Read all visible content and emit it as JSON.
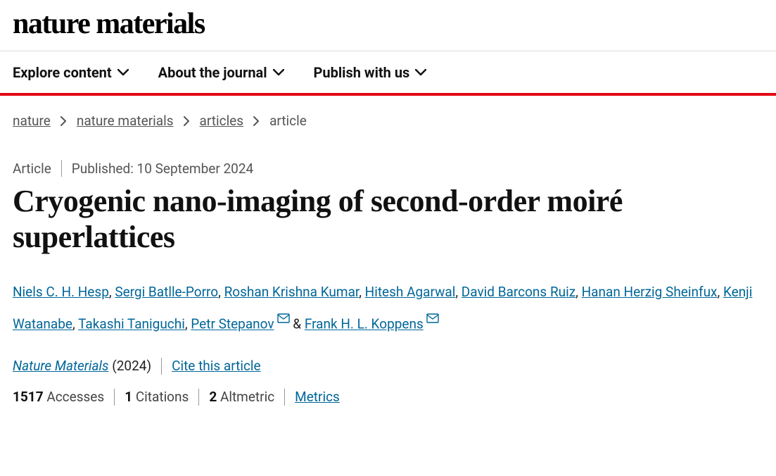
{
  "brand": "nature materials",
  "nav": {
    "items": [
      {
        "label": "Explore content"
      },
      {
        "label": "About the journal"
      },
      {
        "label": "Publish with us"
      }
    ]
  },
  "breadcrumb": {
    "items": [
      {
        "label": "nature",
        "link": true
      },
      {
        "label": "nature materials",
        "link": true
      },
      {
        "label": "articles",
        "link": true
      },
      {
        "label": "article",
        "link": false
      }
    ]
  },
  "meta": {
    "type": "Article",
    "published_label": "Published:",
    "published_date": "10 September 2024"
  },
  "title": "Cryogenic nano-imaging of second-order moiré superlattices",
  "authors": [
    {
      "name": "Niels C. H. Hesp",
      "mail": false
    },
    {
      "name": "Sergi Batlle-Porro",
      "mail": false
    },
    {
      "name": "Roshan Krishna Kumar",
      "mail": false
    },
    {
      "name": "Hitesh Agarwal",
      "mail": false
    },
    {
      "name": "David Barcons Ruiz",
      "mail": false
    },
    {
      "name": "Hanan Herzig Sheinfux",
      "mail": false
    },
    {
      "name": "Kenji Watanabe",
      "mail": false
    },
    {
      "name": "Takashi Taniguchi",
      "mail": false
    },
    {
      "name": "Petr Stepanov",
      "mail": true
    },
    {
      "name": "Frank H. L. Koppens",
      "mail": true
    }
  ],
  "journal": {
    "name": "Nature Materials",
    "year": "(2024)",
    "cite_label": "Cite this article"
  },
  "stats": {
    "accesses": {
      "value": "1517",
      "label": "Accesses"
    },
    "citations": {
      "value": "1",
      "label": "Citations"
    },
    "altmetric": {
      "value": "2",
      "label": "Altmetric"
    },
    "metrics_label": "Metrics"
  },
  "colors": {
    "accent_red": "#e30613",
    "link_blue": "#006699",
    "text_gray": "#555555"
  }
}
